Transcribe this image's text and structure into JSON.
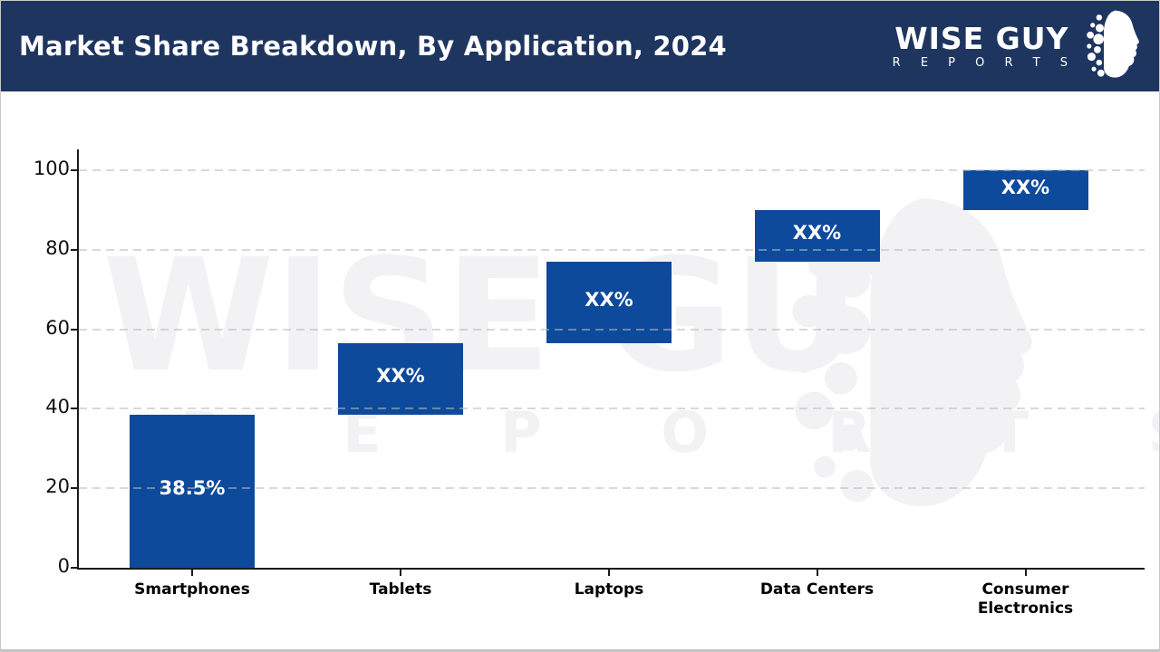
{
  "header": {
    "title": "Market Share Breakdown, By Application, 2024",
    "logo": {
      "line1": "WISE GUY",
      "line2": "R E P O R T S"
    }
  },
  "watermark": {
    "line1": "WISE GUY",
    "line2": "R E P O R T S"
  },
  "colors": {
    "header_bg": "#1e3560",
    "bar_blue": "#0d4a9c",
    "bar_label_white": "#ffffff",
    "watermark_gray": "#f2f2f4"
  },
  "chart_data": {
    "type": "bar",
    "subtype": "waterfall",
    "title": "Market Share Breakdown, By Application, 2024",
    "categories": [
      "Smartphones",
      "Tablets",
      "Laptops",
      "Data Centers",
      "Consumer Electronics"
    ],
    "segments": [
      {
        "category": "Smartphones",
        "start": 0,
        "end": 38.5,
        "label": "38.5%"
      },
      {
        "category": "Tablets",
        "start": 38.5,
        "end": 56.5,
        "label": "XX%"
      },
      {
        "category": "Laptops",
        "start": 56.5,
        "end": 77,
        "label": "XX%"
      },
      {
        "category": "Data Centers",
        "start": 77,
        "end": 90,
        "label": "XX%"
      },
      {
        "category": "Consumer Electronics",
        "start": 90,
        "end": 100,
        "label": "XX%"
      }
    ],
    "yticks": [
      0,
      20,
      40,
      60,
      80,
      100
    ],
    "ylim": [
      0,
      105
    ],
    "xlabel": "",
    "ylabel": "",
    "grid": true,
    "grid_style": "dashed",
    "legend": false,
    "bar_color": "#0d4a9c",
    "label_color": "#ffffff"
  }
}
